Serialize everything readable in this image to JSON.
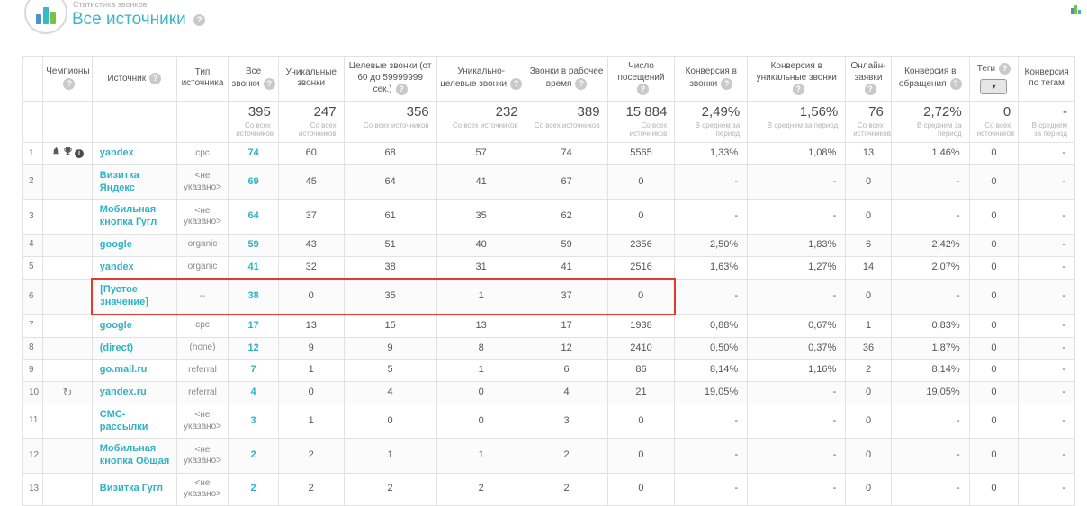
{
  "header": {
    "breadcrumb": "Статистика звонков",
    "title": "Все источники"
  },
  "colors": {
    "accent": "#3db5c6",
    "link": "#2fb3c4",
    "highlight": "#e23a2e"
  },
  "table": {
    "columns": [
      {
        "key": "num",
        "label": "",
        "help": false
      },
      {
        "key": "champions",
        "label": "Чемпионы",
        "help": true
      },
      {
        "key": "source",
        "label": "Источник",
        "help": true
      },
      {
        "key": "type",
        "label": "Тип источника",
        "help": false
      },
      {
        "key": "all_calls",
        "label": "Все звонки",
        "help": true
      },
      {
        "key": "unique_calls",
        "label": "Уникальные звонки",
        "help": false
      },
      {
        "key": "target_calls",
        "label": "Целевые звонки (от 60 до 59999999 сек.)",
        "help": true
      },
      {
        "key": "unique_target_calls",
        "label": "Уникально-целевые звонки",
        "help": true
      },
      {
        "key": "work_time_calls",
        "label": "Звонки в рабочее время",
        "help": true
      },
      {
        "key": "visits",
        "label": "Число посещений",
        "help": true
      },
      {
        "key": "conv_calls",
        "label": "Конверсия в звонки",
        "help": true
      },
      {
        "key": "conv_unique_calls",
        "label": "Конверсия в уникальные звонки",
        "help": true
      },
      {
        "key": "online_requests",
        "label": "Онлайн-заявки",
        "help": true
      },
      {
        "key": "conv_requests",
        "label": "Конверсия в обращения",
        "help": true
      },
      {
        "key": "tags",
        "label": "Теги",
        "help": true,
        "dropdown": true
      },
      {
        "key": "conv_tags",
        "label": "Конверсия по тегам",
        "help": false
      }
    ],
    "summary": {
      "values": [
        "395",
        "247",
        "356",
        "232",
        "389",
        "15 884",
        "2,49%",
        "1,56%",
        "76",
        "2,72%",
        "0",
        "-"
      ],
      "captions": [
        "Со всех источников",
        "Со всех источников",
        "Со всех источников",
        "Со всех источников",
        "Со всех источников",
        "Со всех источников",
        "В среднем за период",
        "В среднем за период",
        "Со всех источников",
        "В среднем за период",
        "Со всех источников",
        "В среднем за период"
      ]
    },
    "rows": [
      {
        "num": "1",
        "icons": [
          "bell-icon",
          "trophy-icon",
          "badge-icon"
        ],
        "source": "yandex",
        "type": "cpc",
        "values": [
          "74",
          "60",
          "68",
          "57",
          "74",
          "5565",
          "1,33%",
          "1,08%",
          "13",
          "1,46%",
          "0",
          "-"
        ]
      },
      {
        "num": "2",
        "icons": [],
        "source": "Визитка Яндекс",
        "type": "<не указано>",
        "values": [
          "69",
          "45",
          "64",
          "41",
          "67",
          "0",
          "-",
          "-",
          "0",
          "-",
          "0",
          "-"
        ]
      },
      {
        "num": "3",
        "icons": [],
        "source": "Мобильная кнопка Гугл",
        "type": "<не указано>",
        "values": [
          "64",
          "37",
          "61",
          "35",
          "62",
          "0",
          "-",
          "-",
          "0",
          "-",
          "0",
          "-"
        ]
      },
      {
        "num": "4",
        "icons": [],
        "source": "google",
        "type": "organic",
        "values": [
          "59",
          "43",
          "51",
          "40",
          "59",
          "2356",
          "2,50%",
          "1,83%",
          "6",
          "2,42%",
          "0",
          "-"
        ]
      },
      {
        "num": "5",
        "icons": [],
        "source": "yandex",
        "type": "organic",
        "values": [
          "41",
          "32",
          "38",
          "31",
          "41",
          "2516",
          "1,63%",
          "1,27%",
          "14",
          "2,07%",
          "0",
          "-"
        ]
      },
      {
        "num": "6",
        "icons": [],
        "source": "[Пустое значение]",
        "type": "--",
        "highlight": true,
        "values": [
          "38",
          "0",
          "35",
          "1",
          "37",
          "0",
          "-",
          "-",
          "0",
          "-",
          "0",
          "-"
        ]
      },
      {
        "num": "7",
        "icons": [],
        "source": "google",
        "type": "cpc",
        "values": [
          "17",
          "13",
          "15",
          "13",
          "17",
          "1938",
          "0,88%",
          "0,67%",
          "1",
          "0,83%",
          "0",
          "-"
        ]
      },
      {
        "num": "8",
        "icons": [],
        "source": "(direct)",
        "type": "(none)",
        "values": [
          "12",
          "9",
          "9",
          "8",
          "12",
          "2410",
          "0,50%",
          "0,37%",
          "36",
          "1,87%",
          "0",
          "-"
        ]
      },
      {
        "num": "9",
        "icons": [],
        "source": "go.mail.ru",
        "type": "referral",
        "values": [
          "7",
          "1",
          "5",
          "1",
          "6",
          "86",
          "8,14%",
          "1,16%",
          "2",
          "8,14%",
          "0",
          "-"
        ]
      },
      {
        "num": "10",
        "icons": [
          "sync-icon"
        ],
        "source": "yandex.ru",
        "type": "referral",
        "values": [
          "4",
          "0",
          "4",
          "0",
          "4",
          "21",
          "19,05%",
          "-",
          "0",
          "19,05%",
          "0",
          "-"
        ]
      },
      {
        "num": "11",
        "icons": [],
        "source": "СМС-рассылки",
        "type": "<не указано>",
        "values": [
          "3",
          "1",
          "0",
          "0",
          "3",
          "0",
          "-",
          "-",
          "0",
          "-",
          "0",
          "-"
        ]
      },
      {
        "num": "12",
        "icons": [],
        "source": "Мобильная кнопка Общая",
        "type": "<не указано>",
        "values": [
          "2",
          "2",
          "1",
          "1",
          "2",
          "0",
          "-",
          "-",
          "0",
          "-",
          "0",
          "-"
        ]
      },
      {
        "num": "13",
        "icons": [],
        "source": "Визитка Гугл",
        "type": "<не указано>",
        "values": [
          "2",
          "2",
          "2",
          "2",
          "2",
          "0",
          "-",
          "-",
          "0",
          "-",
          "0",
          "-"
        ]
      }
    ]
  }
}
